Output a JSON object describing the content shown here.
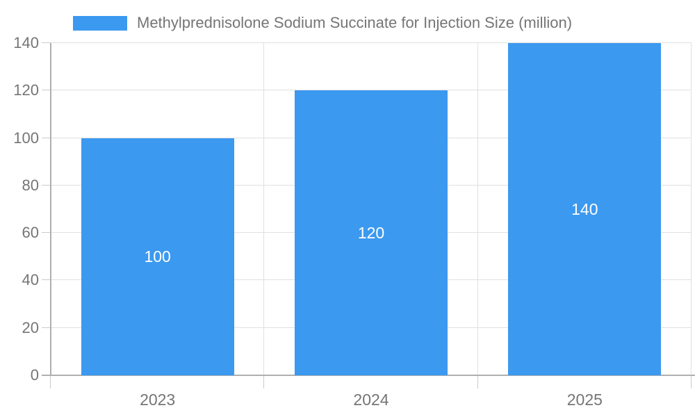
{
  "legend": {
    "label": "Methylprednisolone Sodium Succinate for Injection Size (million)"
  },
  "chart_data": {
    "type": "bar",
    "title": "Methylprednisolone Sodium Succinate for Injection Size (million)",
    "categories": [
      "2023",
      "2024",
      "2025"
    ],
    "series": [
      {
        "name": "Methylprednisolone Sodium Succinate for Injection Size (million)",
        "values": [
          100,
          120,
          140
        ],
        "data_labels": [
          "100",
          "120",
          "140"
        ]
      }
    ],
    "xlabel": "",
    "ylabel": "",
    "ylim": [
      0,
      140
    ],
    "yticks": [
      0,
      20,
      40,
      60,
      80,
      100,
      120,
      140
    ],
    "grid": true,
    "legend_position": "top-left",
    "colors": {
      "bar": "#3B99F0",
      "bar_label_text": "#FFFFFF",
      "axis_text": "#757575",
      "grid_line": "#E0E0E0",
      "tick_line": "#CBCBCB",
      "axis_line": "#AFAFAF",
      "background": "#FFFFFF"
    }
  }
}
